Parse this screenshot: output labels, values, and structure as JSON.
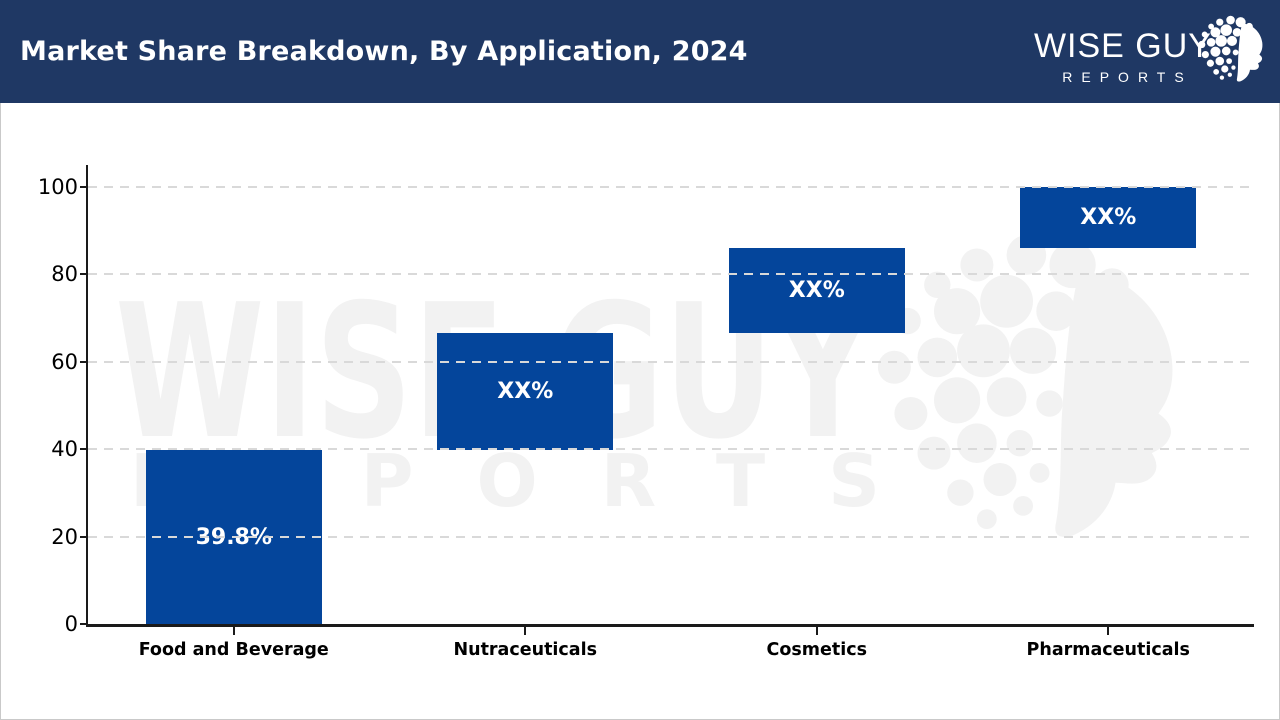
{
  "header": {
    "title": "Market Share Breakdown, By Application, 2024",
    "logo": {
      "name": "WISE GUY",
      "tagline": "REPORTS"
    }
  },
  "watermark": {
    "name": "WISE GUY",
    "tagline": "REPORTS"
  },
  "chart_data": {
    "type": "bar",
    "variant": "waterfall",
    "title": "Market Share Breakdown, By Application, 2024",
    "categories": [
      "Food and Beverage",
      "Nutraceuticals",
      "Cosmetics",
      "Pharmaceuticals"
    ],
    "segments": [
      {
        "category": "Food and Beverage",
        "start": 0,
        "end": 39.8,
        "label": "39.8%"
      },
      {
        "category": "Nutraceuticals",
        "start": 39.8,
        "end": 66.5,
        "label": "XX%"
      },
      {
        "category": "Cosmetics",
        "start": 66.5,
        "end": 86.0,
        "label": "XX%"
      },
      {
        "category": "Pharmaceuticals",
        "start": 86.0,
        "end": 100,
        "label": "XX%"
      }
    ],
    "yticks": [
      0,
      20,
      40,
      60,
      80,
      100
    ],
    "ylim": [
      0,
      105
    ],
    "xlabel": "",
    "ylabel": "",
    "grid": "horizontal-dashed",
    "legend": "none"
  },
  "colors": {
    "header_bg": "#1f3864",
    "bar": "#04459b",
    "grid": "#d9d9d9",
    "axis": "#1a1a1a",
    "bar_label": "#ffffff",
    "watermark": "#f2f2f2"
  }
}
